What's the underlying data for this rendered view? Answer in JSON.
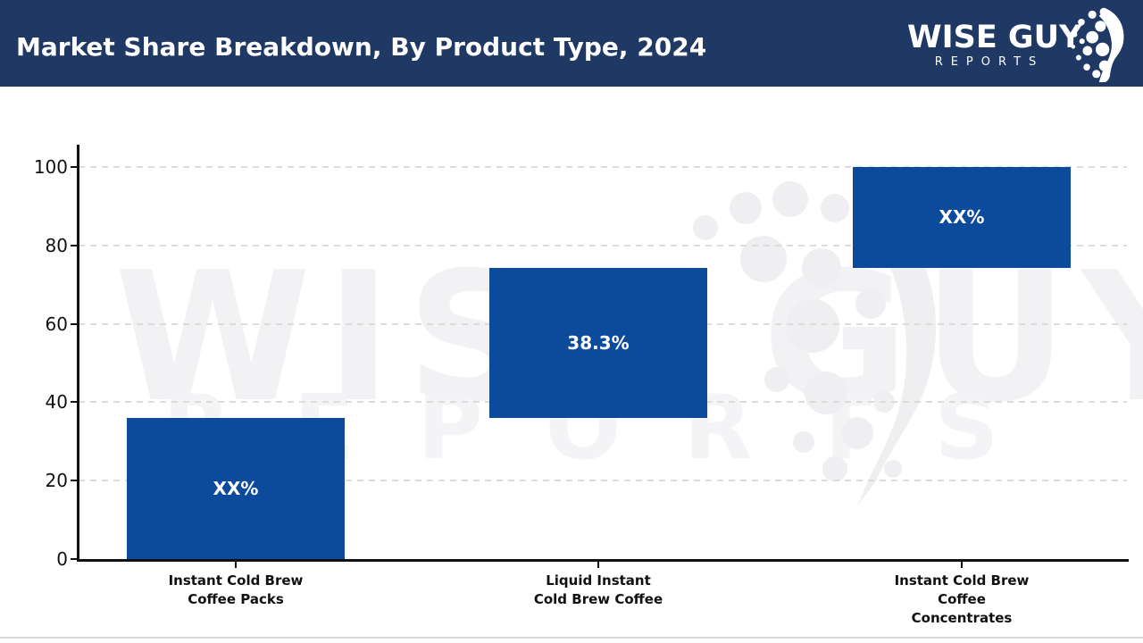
{
  "header": {
    "title": "Market Share Breakdown, By Product Type, 2024",
    "logo": {
      "line1": "WISE GUY",
      "line2": "REPORTS"
    }
  },
  "watermark": {
    "line1": "WISE GUY",
    "line2": "REPORTS"
  },
  "chart_data": {
    "type": "bar",
    "variant": "floating-stacked-waterfall",
    "title": "Market Share Breakdown, By Product Type, 2024",
    "categories": [
      "Instant Cold Brew Coffee Packs",
      "Liquid Instant Cold Brew Coffee",
      "Instant Cold Brew Coffee Concentrates"
    ],
    "segments": [
      {
        "category_lines": [
          "Instant Cold Brew",
          "Coffee Packs"
        ],
        "start": 0,
        "end": 36,
        "label": "XX%"
      },
      {
        "category_lines": [
          "Liquid Instant",
          "Cold Brew Coffee"
        ],
        "start": 36,
        "end": 74.3,
        "label": "38.3%"
      },
      {
        "category_lines": [
          "Instant Cold Brew",
          "Coffee",
          "Concentrates"
        ],
        "start": 74.3,
        "end": 100,
        "label": "XX%"
      }
    ],
    "ylim": [
      0,
      100
    ],
    "yticks": [
      0,
      20,
      40,
      60,
      80,
      100
    ],
    "xlabel": "",
    "ylabel": "",
    "grid": "dashed horizontal",
    "legend": "none",
    "bar_color": "#0c4a9c",
    "colors": {
      "header_bg": "#1f3864",
      "axis": "#111111",
      "gridline": "#dcdcdc",
      "bar_label_text": "#ffffff",
      "watermark": "#f2f2f4"
    }
  }
}
